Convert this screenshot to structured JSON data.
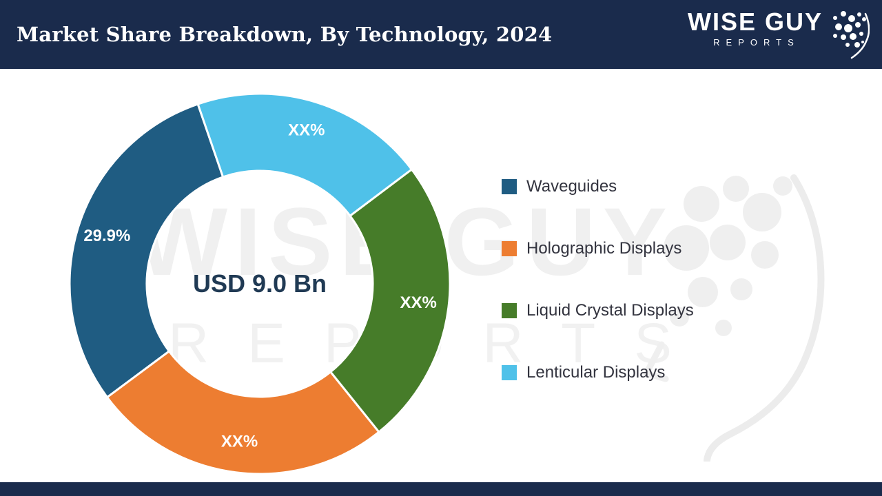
{
  "header": {
    "title": "Market Share Breakdown, By Technology, 2024",
    "logo": {
      "line1": "WISE GUY",
      "line2": "REPORTS"
    }
  },
  "watermark": {
    "line1": "WISE GUY",
    "line2": "REPORTS"
  },
  "chart_data": {
    "type": "donut",
    "title": "Market Share Breakdown, By Technology, 2024",
    "center_label": "USD 9.0 Bn",
    "units": "percent",
    "legend_position": "right",
    "start_angle_deg": -19,
    "direction": "counterclockwise",
    "series": [
      {
        "name": "Waveguides",
        "value": 29.9,
        "display_label": "29.9%",
        "color": "#1f5c82"
      },
      {
        "name": "Holographic Displays",
        "value": 25.6,
        "display_label": "XX%",
        "color": "#ed7d31"
      },
      {
        "name": "Liquid Crystal Displays",
        "value": 24.5,
        "display_label": "XX%",
        "color": "#467c29"
      },
      {
        "name": "Lenticular Displays",
        "value": 20.0,
        "display_label": "XX%",
        "color": "#4fc1e9"
      }
    ],
    "colors": {
      "header_bar": "#1a2b4c",
      "center_text": "#203a54",
      "legend_text": "#33343f"
    }
  }
}
